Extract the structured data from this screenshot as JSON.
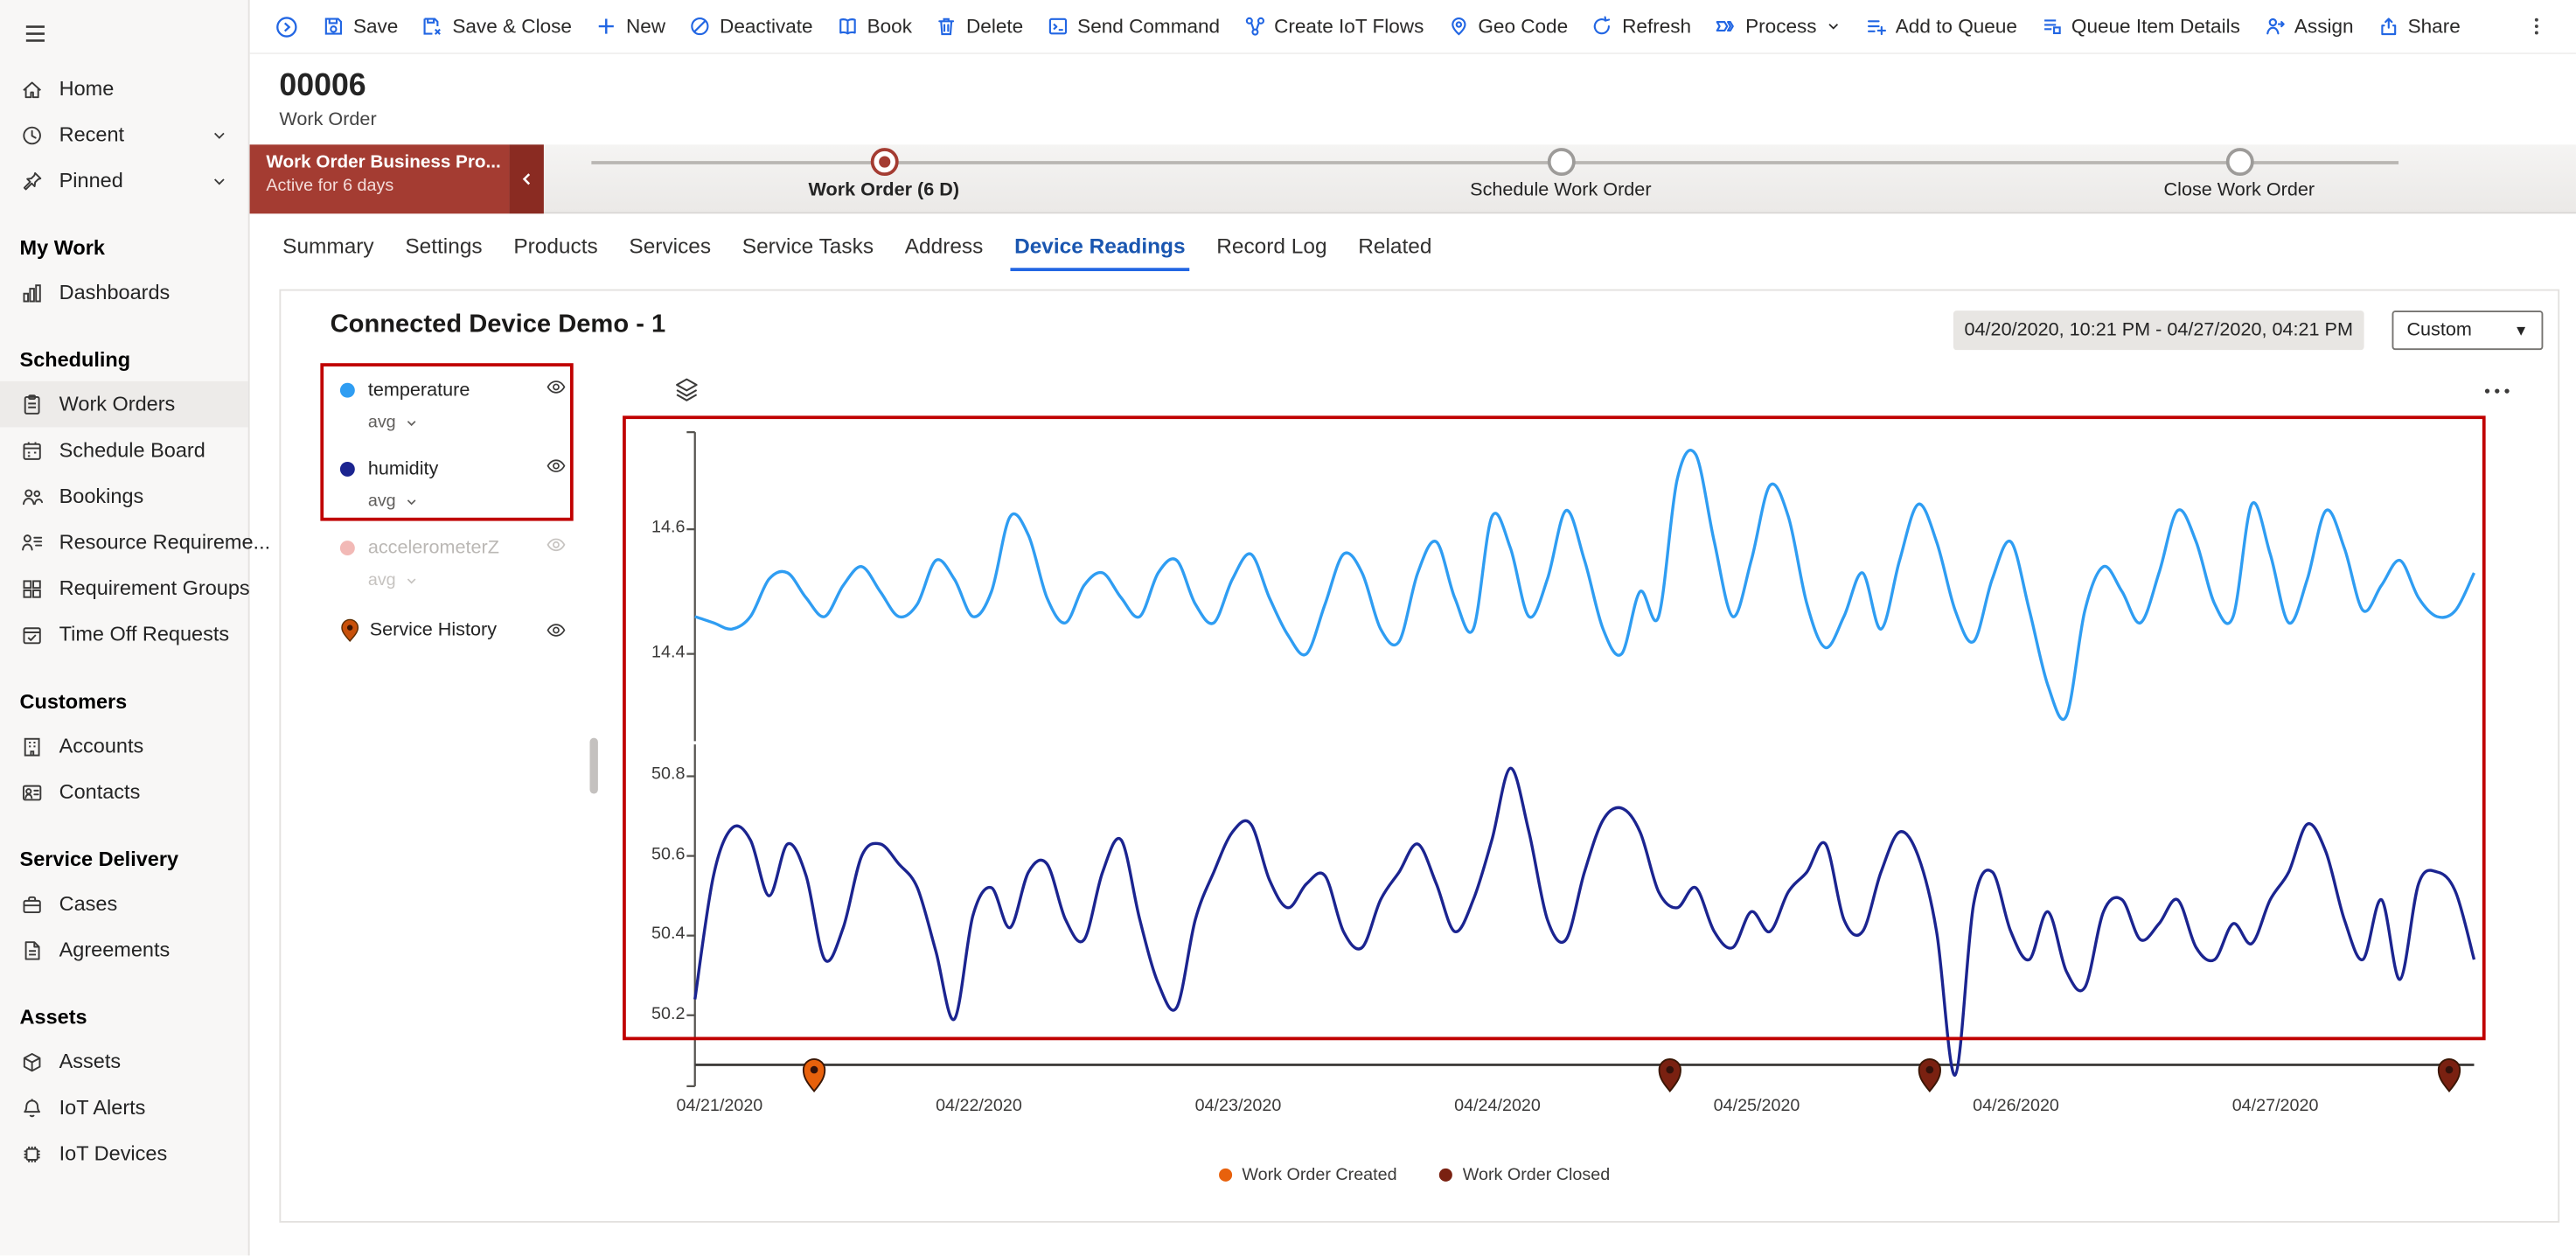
{
  "colors": {
    "accent_blue": "#2266E3",
    "bpf_red": "#A43C32",
    "annotation_red": "#C00000"
  },
  "command_bar": {
    "items": [
      {
        "label": "Save"
      },
      {
        "label": "Save & Close"
      },
      {
        "label": "New"
      },
      {
        "label": "Deactivate"
      },
      {
        "label": "Book"
      },
      {
        "label": "Delete"
      },
      {
        "label": "Send Command"
      },
      {
        "label": "Create IoT Flows"
      },
      {
        "label": "Geo Code"
      },
      {
        "label": "Refresh"
      },
      {
        "label": "Process",
        "has_dropdown": true
      },
      {
        "label": "Add to Queue"
      },
      {
        "label": "Queue Item Details"
      },
      {
        "label": "Assign"
      },
      {
        "label": "Share"
      }
    ]
  },
  "record": {
    "id": "00006",
    "entity": "Work Order"
  },
  "bpf": {
    "name": "Work Order Business Pro...",
    "status": "Active for 6 days",
    "stages": [
      {
        "label": "Work Order  (6 D)",
        "state": "active"
      },
      {
        "label": "Schedule Work Order",
        "state": "pending"
      },
      {
        "label": "Close Work Order",
        "state": "pending"
      }
    ]
  },
  "tabs": {
    "items": [
      {
        "label": "Summary"
      },
      {
        "label": "Settings"
      },
      {
        "label": "Products"
      },
      {
        "label": "Services"
      },
      {
        "label": "Service Tasks"
      },
      {
        "label": "Address"
      },
      {
        "label": "Device Readings",
        "active": true
      },
      {
        "label": "Record Log"
      },
      {
        "label": "Related"
      }
    ]
  },
  "sidebar": {
    "top": [
      {
        "label": "Home"
      },
      {
        "label": "Recent"
      },
      {
        "label": "Pinned"
      }
    ],
    "sections": [
      {
        "header": "My Work",
        "items": [
          {
            "label": "Dashboards"
          }
        ]
      },
      {
        "header": "Scheduling",
        "items": [
          {
            "label": "Work Orders",
            "selected": true
          },
          {
            "label": "Schedule Board"
          },
          {
            "label": "Bookings"
          },
          {
            "label": "Resource Requireme..."
          },
          {
            "label": "Requirement Groups"
          },
          {
            "label": "Time Off Requests"
          }
        ]
      },
      {
        "header": "Customers",
        "items": [
          {
            "label": "Accounts"
          },
          {
            "label": "Contacts"
          }
        ]
      },
      {
        "header": "Service Delivery",
        "items": [
          {
            "label": "Cases"
          },
          {
            "label": "Agreements"
          }
        ]
      },
      {
        "header": "Assets",
        "items": [
          {
            "label": "Assets"
          },
          {
            "label": "IoT Alerts"
          },
          {
            "label": "IoT Devices"
          }
        ]
      }
    ]
  },
  "chart_panel": {
    "title": "Connected Device Demo - 1",
    "date_range": "04/20/2020, 10:21 PM - 04/27/2020, 04:21 PM",
    "range_option": "Custom",
    "legend_entries": [
      {
        "name": "temperature",
        "agg": "avg",
        "color": "#2F9DF2",
        "disabled": false
      },
      {
        "name": "humidity",
        "agg": "avg",
        "color": "#1B2490",
        "disabled": false
      },
      {
        "name": "accelerometerZ",
        "agg": "avg",
        "color": "#F2B9B6",
        "disabled": true
      }
    ],
    "service_history_label": "Service History"
  },
  "chart_data": {
    "type": "line",
    "title": "Connected Device Demo - 1",
    "x_ticks": [
      "04/21/2020",
      "04/22/2020",
      "04/23/2020",
      "04/24/2020",
      "04/25/2020",
      "04/26/2020",
      "04/27/2020"
    ],
    "series": [
      {
        "name": "temperature",
        "aggregation": "avg",
        "color": "#2F9DF2",
        "axis": {
          "min": 14.26,
          "max": 14.74,
          "ticks": [
            "14.6",
            "14.4"
          ],
          "tick_values": [
            14.6,
            14.4
          ]
        },
        "values": [
          14.46,
          14.45,
          14.44,
          14.46,
          14.52,
          14.53,
          14.49,
          14.46,
          14.51,
          14.54,
          14.5,
          14.46,
          14.48,
          14.55,
          14.52,
          14.46,
          14.5,
          14.62,
          14.59,
          14.49,
          14.45,
          14.51,
          14.53,
          14.49,
          14.46,
          14.53,
          14.55,
          14.48,
          14.45,
          14.52,
          14.56,
          14.49,
          14.43,
          14.4,
          14.48,
          14.56,
          14.53,
          14.44,
          14.42,
          14.53,
          14.58,
          14.49,
          14.44,
          14.62,
          14.57,
          14.46,
          14.52,
          14.63,
          14.55,
          14.44,
          14.4,
          14.5,
          14.46,
          14.68,
          14.72,
          14.58,
          14.46,
          14.55,
          14.67,
          14.62,
          14.48,
          14.41,
          14.46,
          14.53,
          14.44,
          14.55,
          14.64,
          14.58,
          14.47,
          14.42,
          14.52,
          14.58,
          14.47,
          14.35,
          14.3,
          14.47,
          14.54,
          14.5,
          14.45,
          14.53,
          14.63,
          14.58,
          14.48,
          14.46,
          14.64,
          14.56,
          14.45,
          14.52,
          14.63,
          14.57,
          14.47,
          14.51,
          14.55,
          14.49,
          14.46,
          14.47,
          14.53
        ]
      },
      {
        "name": "humidity",
        "aggregation": "avg",
        "color": "#1B2490",
        "axis": {
          "min": 50.03,
          "max": 50.88,
          "ticks": [
            "50.8",
            "50.6",
            "50.4",
            "50.2"
          ],
          "tick_values": [
            50.8,
            50.6,
            50.4,
            50.2
          ]
        },
        "values": [
          50.24,
          50.55,
          50.67,
          50.64,
          50.5,
          50.63,
          50.55,
          50.34,
          50.42,
          50.6,
          50.63,
          50.58,
          50.52,
          50.36,
          50.19,
          50.45,
          50.52,
          50.42,
          50.56,
          50.58,
          50.44,
          50.39,
          50.56,
          50.64,
          50.44,
          50.28,
          50.22,
          50.44,
          50.56,
          50.66,
          50.68,
          50.54,
          50.47,
          50.53,
          50.55,
          50.41,
          50.37,
          50.49,
          50.56,
          50.63,
          50.53,
          50.41,
          50.49,
          50.64,
          50.82,
          50.66,
          50.44,
          50.39,
          50.56,
          50.69,
          50.72,
          50.66,
          50.51,
          50.47,
          50.52,
          50.41,
          50.37,
          50.46,
          50.41,
          50.51,
          50.56,
          50.63,
          50.44,
          50.41,
          50.56,
          50.66,
          50.6,
          50.41,
          50.05,
          50.48,
          50.56,
          50.41,
          50.34,
          50.46,
          50.31,
          50.27,
          50.46,
          50.49,
          50.39,
          50.43,
          50.49,
          50.37,
          50.34,
          50.43,
          50.38,
          50.49,
          50.56,
          50.68,
          50.61,
          50.44,
          50.34,
          50.49,
          50.29,
          50.53,
          50.56,
          50.51,
          50.34
        ]
      }
    ],
    "events": [
      {
        "x_frac": 0.067,
        "type": "created"
      },
      {
        "x_frac": 0.548,
        "type": "closed"
      },
      {
        "x_frac": 0.694,
        "type": "closed"
      },
      {
        "x_frac": 0.986,
        "type": "closed"
      }
    ],
    "event_legend": [
      {
        "label": "Work Order Created",
        "color": "#E8610C"
      },
      {
        "label": "Work Order Closed",
        "color": "#7A2111"
      }
    ],
    "legend_position": "left",
    "grid": false
  }
}
